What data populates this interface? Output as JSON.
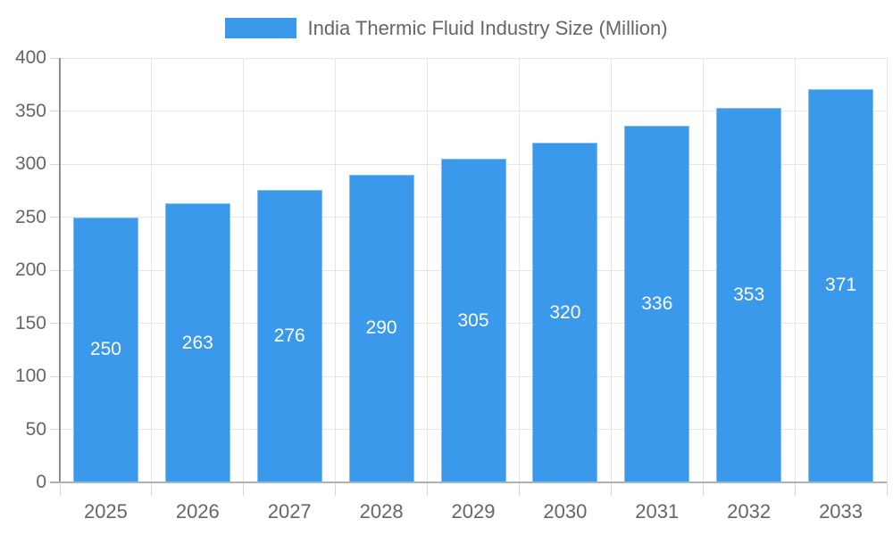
{
  "legend": {
    "label": "India Thermic Fluid Industry Size (Million)"
  },
  "chart_data": {
    "type": "bar",
    "title": "India Thermic Fluid Industry Size (Million)",
    "categories": [
      "2025",
      "2026",
      "2027",
      "2028",
      "2029",
      "2030",
      "2031",
      "2032",
      "2033"
    ],
    "series": [
      {
        "name": "India Thermic Fluid Industry Size (Million)",
        "values": [
          250,
          263,
          276,
          290,
          305,
          320,
          336,
          353,
          371
        ]
      }
    ],
    "value_labels": [
      "250",
      "263",
      "276",
      "290",
      "305",
      "320",
      "336",
      "353",
      "371"
    ],
    "xlabel": "",
    "ylabel": "",
    "ylim": [
      0,
      400
    ],
    "ytick_step": 50,
    "ytick_labels": [
      "0",
      "50",
      "100",
      "150",
      "200",
      "250",
      "300",
      "350",
      "400"
    ],
    "grid": "both",
    "legend_position": "top"
  },
  "colors": {
    "bar": "#3b99ec",
    "bar_border": "#85bff2",
    "grid": "#e6e6e6",
    "tick": "#d6d6d6",
    "x_axis_line": "#b0b0b0",
    "y_axis_line": "#8e8e8e",
    "axis_text": "#666666",
    "legend_text": "#666666",
    "value_label": "#ffffff",
    "background": "#ffffff"
  }
}
